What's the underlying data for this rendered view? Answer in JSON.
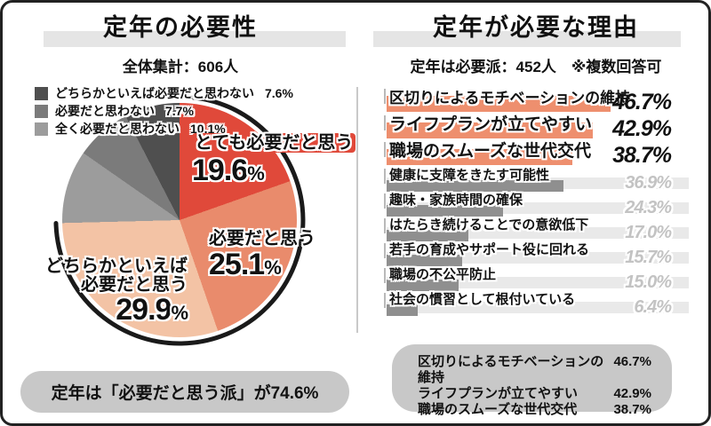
{
  "percent_sign": "%",
  "left_panel": {
    "title": "定年の必要性",
    "subtitle": "全体集計：606人",
    "conclusion_pill": "定年は「必要だと思う派」が74.6%"
  },
  "right_panel": {
    "title": "定年が必要な理由",
    "subtitle": "定年は必要派：452人　※複数回答可",
    "summary_box": [
      {
        "label": "区切りによるモチベーションの維持",
        "value": 46.7
      },
      {
        "label": "ライフプランが立てやすい",
        "value": 42.9
      },
      {
        "label": "職場のスムーズな世代交代",
        "value": 38.7
      }
    ]
  },
  "chart_data": [
    {
      "type": "pie",
      "title": "定年の必要性",
      "sample_label": "全体集計：606人",
      "start_angle_deg": 0,
      "clockwise": true,
      "highlight_arc_percent": 74.6,
      "slices": [
        {
          "label": "とても必要だと思う",
          "value": 19.6,
          "color": "#e0493a"
        },
        {
          "label": "必要だと思う",
          "value": 25.1,
          "color": "#e98b6c"
        },
        {
          "label": "どちらかといえば必要だと思う",
          "value": 29.9,
          "color": "#f3c3a5",
          "label_lines": [
            "どちらかといえば",
            "必要だと思う"
          ]
        },
        {
          "label": "全く必要だと思わない",
          "value": 10.1,
          "color": "#9c9c9c"
        },
        {
          "label": "必要だと思わない",
          "value": 7.7,
          "color": "#7b7b7b"
        },
        {
          "label": "どちらかといえば必要だと思わない",
          "value": 7.6,
          "color": "#4f4f4f"
        }
      ],
      "legend": [
        {
          "label": "どちらかといえば必要だと思わない",
          "value": 7.6,
          "color": "#4f4f4f"
        },
        {
          "label": "必要だと思わない",
          "value": 7.7,
          "color": "#7b7b7b"
        },
        {
          "label": "全く必要だと思わない",
          "value": 10.1,
          "color": "#9c9c9c"
        }
      ]
    },
    {
      "type": "bar",
      "orientation": "horizontal",
      "title": "定年が必要な理由",
      "sample_label": "定年は必要派：452人　※複数回答可",
      "categories": [
        "区切りによるモチベーションの維持",
        "ライフプランが立てやすい",
        "職場のスムーズな世代交代",
        "健康に支障をきたす可能性",
        "趣味・家族時間の確保",
        "はたらき続けることでの意欲低下",
        "若手の育成やサポート役に回れる",
        "職場の不公平防止",
        "社会の慣習として根付いている"
      ],
      "values": [
        46.7,
        42.9,
        38.7,
        36.9,
        24.3,
        17.0,
        15.7,
        15.0,
        6.4
      ],
      "highlight_count": 3,
      "highlight_color": "#ee8f6e",
      "bar_color": "#8f8f8f",
      "track_color": "#e9e9e9",
      "xlim": [
        0,
        63
      ],
      "grid": false,
      "legend_position": "none"
    }
  ]
}
